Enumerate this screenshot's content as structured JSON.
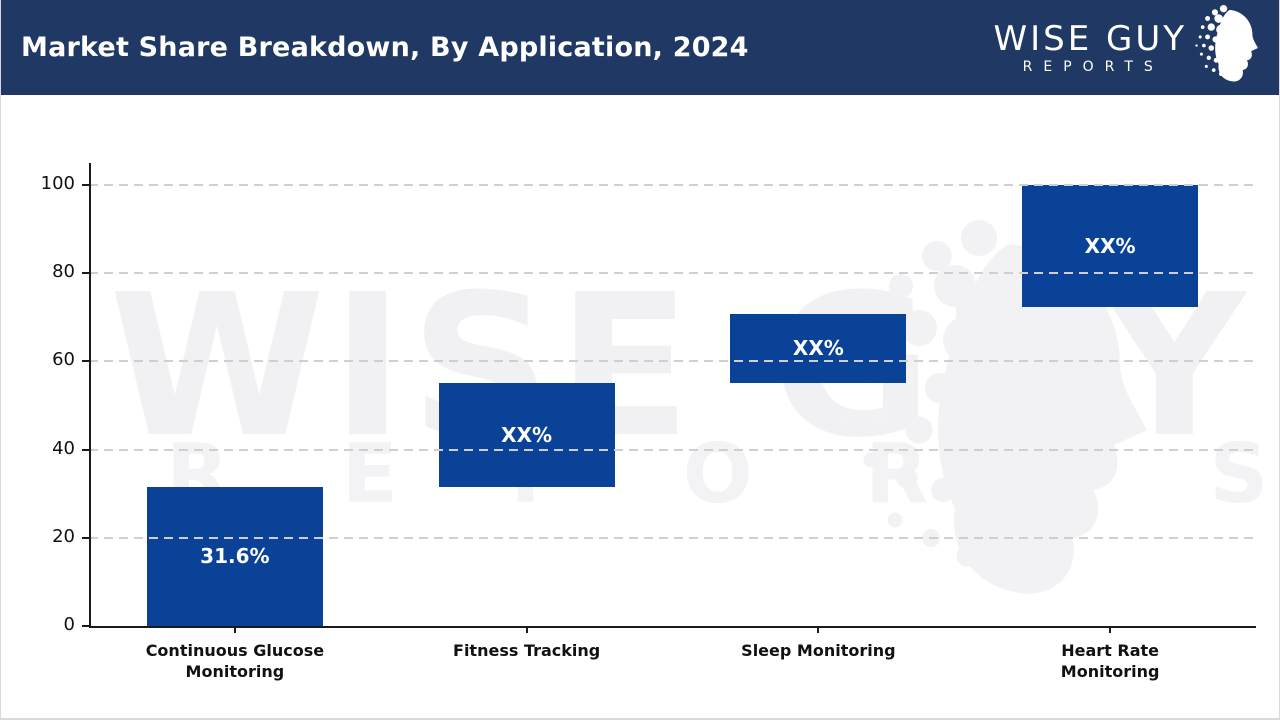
{
  "header": {
    "title": "Market Share Breakdown, By Application, 2024",
    "bg_color": "#203864",
    "logo": {
      "line1": "WISE GUY",
      "line2": "REPORTS"
    }
  },
  "watermark": {
    "line1": "WISE GUY",
    "line2": "R E P O R T S"
  },
  "chart_data": {
    "type": "bar",
    "subtype": "waterfall",
    "title": "Market Share Breakdown, By Application, 2024",
    "categories": [
      "Continuous Glucose Monitoring",
      "Fitness Tracking",
      "Sleep Monitoring",
      "Heart Rate Monitoring"
    ],
    "category_lines": [
      [
        "Continuous Glucose",
        "Monitoring"
      ],
      [
        "Fitness Tracking"
      ],
      [
        "Sleep Monitoring"
      ],
      [
        "Heart Rate",
        "Monitoring"
      ]
    ],
    "segments": [
      {
        "start": 0,
        "end": 31.6,
        "label": "31.6%"
      },
      {
        "start": 31.6,
        "end": 55.2,
        "label": "XX%"
      },
      {
        "start": 55.2,
        "end": 70.8,
        "label": "XX%"
      },
      {
        "start": 72.3,
        "end": 100,
        "label": "XX%"
      }
    ],
    "xlabel": "",
    "ylabel": "",
    "ylim": [
      0,
      105
    ],
    "yticks": [
      0,
      20,
      40,
      60,
      80,
      100
    ],
    "grid": "horizontal-dashed",
    "gridline_color": "#cfcfcf",
    "bar_color": "#0a4297",
    "bar_label_color": "#ffffff",
    "legend": "none"
  }
}
